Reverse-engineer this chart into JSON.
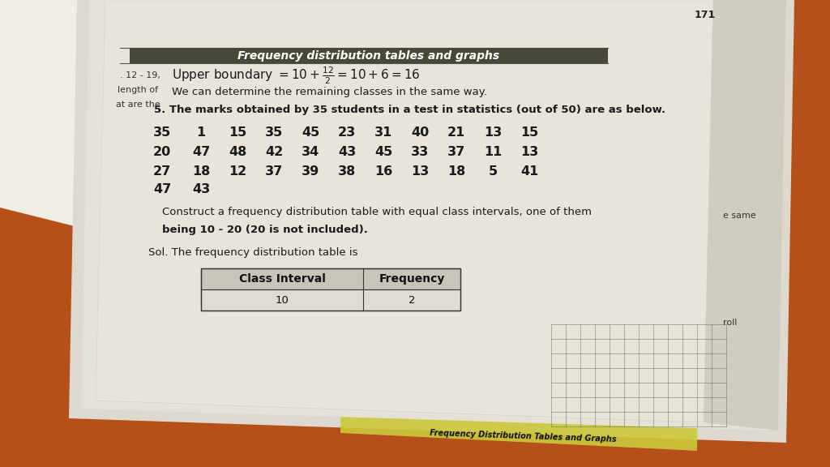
{
  "brick_color": "#b5501a",
  "brick_color2": "#c05818",
  "page_color": "#e0dbd0",
  "page_color2": "#d8d3c8",
  "page_shadow": "#ccc8bc",
  "yellow_strip_color": "#ccc93a",
  "yellow_strip_text": "Frequency Distribution Tables and Graphs",
  "graph_paper_color": "#b8c8b0",
  "grid_line_color": "#7a9a72",
  "page_number": "171",
  "header_bar_color": "#4a4a3a",
  "header_text": "Frequency distribution tables and graphs",
  "left_texts": [
    ". 12 - 19,",
    "length of",
    "at are the"
  ],
  "sub_text1": "We can determine the remaining classes in the same way.",
  "question_text": "5. The marks obtained by 35 students in a test in statistics (out of 50) are as below.",
  "data_rows": [
    [
      35,
      1,
      15,
      35,
      45,
      23,
      31,
      40,
      21,
      13,
      15
    ],
    [
      20,
      47,
      48,
      42,
      34,
      43,
      45,
      33,
      37,
      11,
      13
    ],
    [
      27,
      18,
      12,
      37,
      39,
      38,
      16,
      13,
      18,
      5,
      41
    ],
    [
      47,
      43
    ]
  ],
  "construct_text": "Construct a frequency distribution table with equal class intervals, one of them",
  "being_text": "being 10 - 20 (20 is not included).",
  "sol_text": "Sol. The frequency distribution table is",
  "table_headers": [
    "Class Interval",
    "Frequency"
  ],
  "table_first_ci": "10",
  "table_first_freq": "2",
  "right_text1": "e same",
  "right_text2": "roll"
}
